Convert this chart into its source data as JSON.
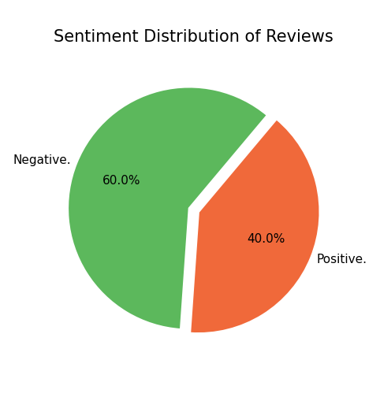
{
  "title": "Sentiment Distribution of Reviews",
  "labels": [
    "Negative.",
    "Positive."
  ],
  "sizes": [
    60.0,
    40.0
  ],
  "colors": [
    "#5cb85c",
    "#f0693a"
  ],
  "startangle": 50,
  "explode": [
    0.04,
    0.04
  ],
  "title_fontsize": 15,
  "label_fontsize": 11,
  "autopct_fontsize": 11
}
